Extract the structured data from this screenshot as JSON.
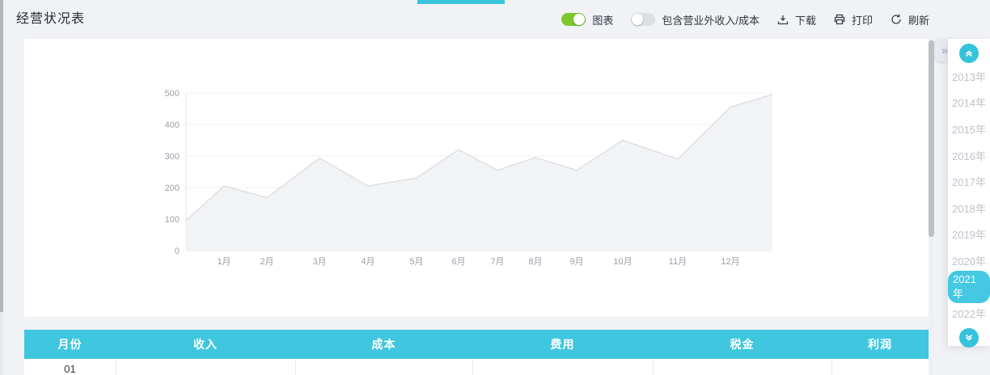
{
  "page": {
    "title": "经营状况表"
  },
  "toolbar": {
    "chart_toggle": {
      "label": "图表",
      "on": true
    },
    "include_toggle": {
      "label": "包含营业外收入/成本",
      "on": false
    },
    "download_label": "下载",
    "print_label": "打印",
    "refresh_label": "刷新"
  },
  "chart_data": {
    "type": "area",
    "title": "",
    "xlabel": "",
    "ylabel": "",
    "categories": [
      "1月",
      "2月",
      "3月",
      "4月",
      "5月",
      "6月",
      "7月",
      "8月",
      "9月",
      "10月",
      "11月",
      "12月"
    ],
    "values": [
      205,
      168,
      293,
      205,
      230,
      320,
      255,
      295,
      255,
      350,
      290,
      455
    ],
    "edge_values": {
      "start": 95,
      "end": 495
    },
    "ylim": [
      0,
      500
    ],
    "yticks": [
      0,
      100,
      200,
      300,
      400,
      500
    ],
    "grid": true,
    "legend": "none",
    "area_fill": "#f2f3f5",
    "line_color": "#dde0e4"
  },
  "table": {
    "headers": [
      "月份",
      "收入",
      "成本",
      "费用",
      "税金",
      "利润"
    ],
    "rows": [
      [
        "01",
        "",
        "",
        "",
        "",
        ""
      ]
    ]
  },
  "year_panel": {
    "years": [
      "2013年",
      "2014年",
      "2015年",
      "2016年",
      "2017年",
      "2018年",
      "2019年",
      "2020年",
      "2021年",
      "2022年"
    ],
    "selected": "2021年",
    "collapse_glyph": "»"
  },
  "colors": {
    "accent_cyan": "#3ec7de",
    "pill_cyan": "#45c8e2",
    "toggle_green": "#7cc82d",
    "axis_text": "#9aa0a8"
  }
}
